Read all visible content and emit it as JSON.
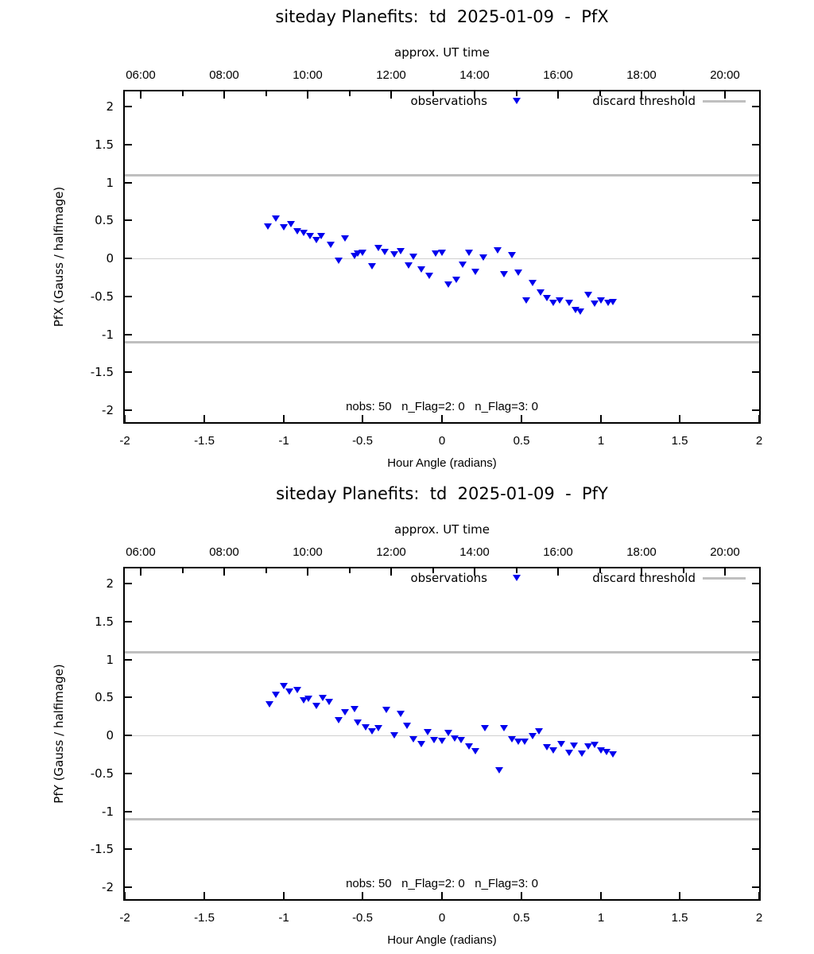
{
  "page": {
    "background": "#ffffff"
  },
  "charts": [
    {
      "title": "siteday Planefits:  td  2025-01-09  -  PfX",
      "top_axis_label": "approx. UT time",
      "ylabel": "PfX (Gauss / halfimage)",
      "xlabel": "Hour Angle (radians)",
      "stats_text": "nobs: 50   n_Flag=2: 0   n_Flag=3: 0",
      "legend": {
        "observations": "observations",
        "threshold": "discard threshold"
      }
    },
    {
      "title": "siteday Planefits:  td  2025-01-09  -  PfY",
      "top_axis_label": "approx. UT time",
      "ylabel": "PfY (Gauss / halfimage)",
      "xlabel": "Hour Angle (radians)",
      "stats_text": "nobs: 50   n_Flag=2: 0   n_Flag=3: 0",
      "legend": {
        "observations": "observations",
        "threshold": "discard threshold"
      }
    }
  ],
  "chart_data": [
    {
      "type": "scatter",
      "title": "siteday Planefits: td 2025-01-09 - PfX",
      "xlabel": "Hour Angle (radians)",
      "ylabel": "PfX (Gauss / halfimage)",
      "x2label": "approx. UT time",
      "xlim": [
        -2,
        2
      ],
      "ylim": [
        -2.2,
        2.2
      ],
      "x_ticks": [
        -2,
        -1.5,
        -1,
        -0.5,
        0,
        0.5,
        1,
        1.5,
        2
      ],
      "y_ticks": [
        -2,
        -1.5,
        -1,
        -0.5,
        0,
        0.5,
        1,
        1.5,
        2
      ],
      "ut_label_hours": [
        6,
        8,
        10,
        12,
        14,
        16,
        18,
        20
      ],
      "ut_labels": [
        "06:00",
        "08:00",
        "10:00",
        "12:00",
        "14:00",
        "16:00",
        "18:00",
        "20:00"
      ],
      "ut_minor_hours": [
        7,
        9,
        11,
        13,
        15,
        17,
        19
      ],
      "zero_line": 0,
      "discard_thresholds": [
        1.1,
        -1.1
      ],
      "threshold_color": "#bfbfbf",
      "marker": {
        "shape": "triangle-down",
        "color": "#0000ee"
      },
      "nobs": 50,
      "n_flag2": 0,
      "n_flag3": 0,
      "legend_position": "top right inside",
      "series": [
        {
          "name": "observations",
          "points": [
            [
              -1.1,
              0.42
            ],
            [
              -1.05,
              0.52
            ],
            [
              -1.0,
              0.41
            ],
            [
              -0.95,
              0.45
            ],
            [
              -0.91,
              0.36
            ],
            [
              -0.87,
              0.34
            ],
            [
              -0.83,
              0.29
            ],
            [
              -0.79,
              0.24
            ],
            [
              -0.76,
              0.29
            ],
            [
              -0.7,
              0.18
            ],
            [
              -0.65,
              -0.03
            ],
            [
              -0.61,
              0.26
            ],
            [
              -0.55,
              0.03
            ],
            [
              -0.53,
              0.06
            ],
            [
              -0.5,
              0.07
            ],
            [
              -0.44,
              -0.1
            ],
            [
              -0.4,
              0.14
            ],
            [
              -0.36,
              0.08
            ],
            [
              -0.3,
              0.05
            ],
            [
              -0.26,
              0.09
            ],
            [
              -0.21,
              -0.09
            ],
            [
              -0.18,
              0.02
            ],
            [
              -0.13,
              -0.15
            ],
            [
              -0.08,
              -0.23
            ],
            [
              -0.04,
              0.06
            ],
            [
              0.0,
              0.07
            ],
            [
              0.04,
              -0.35
            ],
            [
              0.09,
              -0.28
            ],
            [
              0.13,
              -0.08
            ],
            [
              0.17,
              0.07
            ],
            [
              0.21,
              -0.18
            ],
            [
              0.26,
              0.01
            ],
            [
              0.35,
              0.1
            ],
            [
              0.39,
              -0.21
            ],
            [
              0.44,
              0.04
            ],
            [
              0.48,
              -0.19
            ],
            [
              0.53,
              -0.55
            ],
            [
              0.57,
              -0.32
            ],
            [
              0.62,
              -0.45
            ],
            [
              0.66,
              -0.52
            ],
            [
              0.7,
              -0.59
            ],
            [
              0.74,
              -0.55
            ],
            [
              0.8,
              -0.59
            ],
            [
              0.84,
              -0.68
            ],
            [
              0.87,
              -0.7
            ],
            [
              0.92,
              -0.48
            ],
            [
              0.96,
              -0.6
            ],
            [
              1.0,
              -0.56
            ],
            [
              1.05,
              -0.59
            ],
            [
              1.08,
              -0.58
            ]
          ]
        }
      ]
    },
    {
      "type": "scatter",
      "title": "siteday Planefits: td 2025-01-09 - PfY",
      "xlabel": "Hour Angle (radians)",
      "ylabel": "PfY (Gauss / halfimage)",
      "x2label": "approx. UT time",
      "xlim": [
        -2,
        2
      ],
      "ylim": [
        -2.2,
        2.2
      ],
      "x_ticks": [
        -2,
        -1.5,
        -1,
        -0.5,
        0,
        0.5,
        1,
        1.5,
        2
      ],
      "y_ticks": [
        -2,
        -1.5,
        -1,
        -0.5,
        0,
        0.5,
        1,
        1.5,
        2
      ],
      "ut_label_hours": [
        6,
        8,
        10,
        12,
        14,
        16,
        18,
        20
      ],
      "ut_labels": [
        "06:00",
        "08:00",
        "10:00",
        "12:00",
        "14:00",
        "16:00",
        "18:00",
        "20:00"
      ],
      "ut_minor_hours": [
        7,
        9,
        11,
        13,
        15,
        17,
        19
      ],
      "zero_line": 0,
      "discard_thresholds": [
        1.1,
        -1.1
      ],
      "threshold_color": "#bfbfbf",
      "marker": {
        "shape": "triangle-down",
        "color": "#0000ee"
      },
      "nobs": 50,
      "n_flag2": 0,
      "n_flag3": 0,
      "legend_position": "top right inside",
      "series": [
        {
          "name": "observations",
          "points": [
            [
              -1.09,
              0.41
            ],
            [
              -1.05,
              0.53
            ],
            [
              -1.0,
              0.65
            ],
            [
              -0.96,
              0.58
            ],
            [
              -0.91,
              0.6
            ],
            [
              -0.87,
              0.46
            ],
            [
              -0.84,
              0.48
            ],
            [
              -0.79,
              0.39
            ],
            [
              -0.75,
              0.49
            ],
            [
              -0.71,
              0.44
            ],
            [
              -0.65,
              0.2
            ],
            [
              -0.61,
              0.3
            ],
            [
              -0.55,
              0.35
            ],
            [
              -0.53,
              0.17
            ],
            [
              -0.48,
              0.1
            ],
            [
              -0.44,
              0.05
            ],
            [
              -0.4,
              0.09
            ],
            [
              -0.35,
              0.33
            ],
            [
              -0.3,
              0.0
            ],
            [
              -0.26,
              0.28
            ],
            [
              -0.22,
              0.13
            ],
            [
              -0.18,
              -0.05
            ],
            [
              -0.13,
              -0.11
            ],
            [
              -0.09,
              0.04
            ],
            [
              -0.05,
              -0.06
            ],
            [
              0.0,
              -0.07
            ],
            [
              0.04,
              0.03
            ],
            [
              0.08,
              -0.04
            ],
            [
              0.12,
              -0.06
            ],
            [
              0.17,
              -0.15
            ],
            [
              0.21,
              -0.21
            ],
            [
              0.27,
              0.09
            ],
            [
              0.36,
              -0.46
            ],
            [
              0.39,
              0.09
            ],
            [
              0.44,
              -0.05
            ],
            [
              0.48,
              -0.08
            ],
            [
              0.52,
              -0.08
            ],
            [
              0.57,
              -0.01
            ],
            [
              0.61,
              0.05
            ],
            [
              0.66,
              -0.16
            ],
            [
              0.7,
              -0.2
            ],
            [
              0.75,
              -0.11
            ],
            [
              0.8,
              -0.23
            ],
            [
              0.83,
              -0.14
            ],
            [
              0.88,
              -0.24
            ],
            [
              0.92,
              -0.15
            ],
            [
              0.96,
              -0.13
            ],
            [
              1.0,
              -0.2
            ],
            [
              1.04,
              -0.22
            ],
            [
              1.08,
              -0.25
            ]
          ]
        }
      ]
    }
  ]
}
